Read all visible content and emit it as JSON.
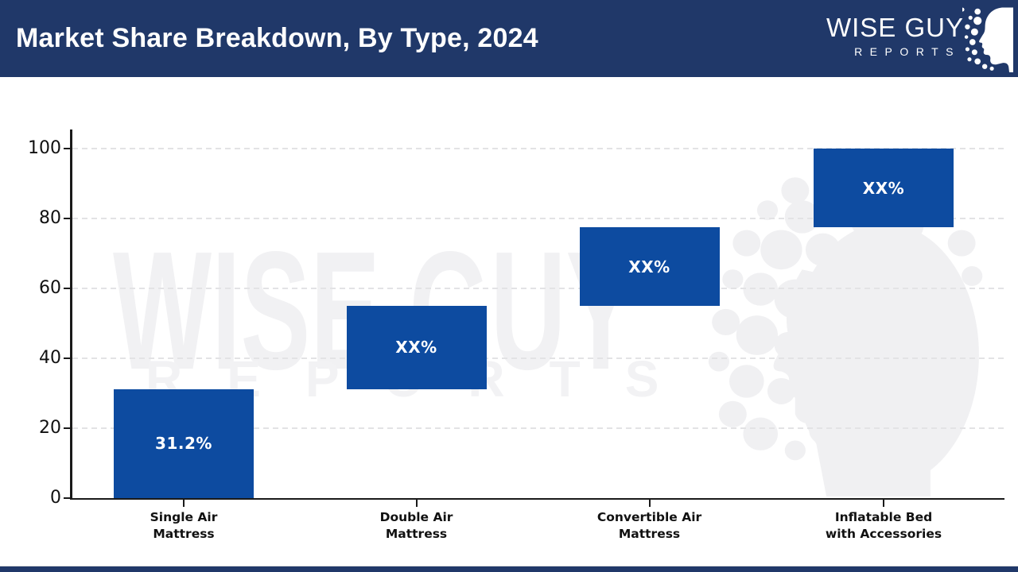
{
  "header": {
    "title": "Market Share Breakdown, By Type, 2024",
    "bg_color": "#203869"
  },
  "logo": {
    "line1": "WISE GUY",
    "line2": "REPORTS",
    "icon": "dotted-face-profile"
  },
  "watermark": {
    "line1": "WISE GUY",
    "line2": "REPORTS",
    "icon": "dotted-face-profile"
  },
  "chart_data": {
    "type": "bar",
    "subtype": "waterfall",
    "title": "Market Share Breakdown, By Type, 2024",
    "categories": [
      [
        "Single Air",
        "Mattress"
      ],
      [
        "Double Air",
        "Mattress"
      ],
      [
        "Convertible Air",
        "Mattress"
      ],
      [
        "Inflatable Bed",
        "with Accessories"
      ]
    ],
    "segments": [
      {
        "start": 0,
        "end": 31.2,
        "label": "31.2%"
      },
      {
        "start": 31.2,
        "end": 55,
        "label": "XX%"
      },
      {
        "start": 55,
        "end": 77.5,
        "label": "XX%"
      },
      {
        "start": 77.5,
        "end": 100,
        "label": "XX%"
      }
    ],
    "yticks": [
      0,
      20,
      40,
      60,
      80,
      100
    ],
    "ylim": [
      0,
      105
    ],
    "xlabel": "",
    "ylabel": "",
    "grid": "horizontal-dashed",
    "legend": "none",
    "bar_color": "#0d4ba0",
    "bar_label_color": "#ffffff",
    "axis_color": "#1a1a1a",
    "gridline_color": "#e3e3e5"
  },
  "footer": {
    "bg_color": "#203869"
  }
}
